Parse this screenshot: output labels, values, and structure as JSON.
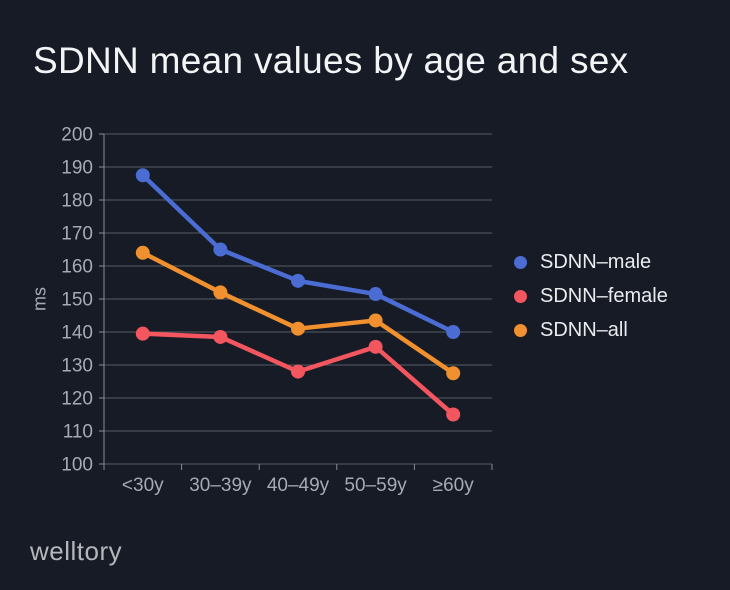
{
  "chart_data": {
    "type": "line",
    "title": "SDNN mean values by age and sex",
    "ylabel": "ms",
    "xlabel": "",
    "categories": [
      "<30y",
      "30–39y",
      "40–49y",
      "50–59y",
      "≥60y"
    ],
    "ylim": [
      100,
      200
    ],
    "ytick_step": 10,
    "grid": true,
    "legend_position": "right",
    "series": [
      {
        "name": "SDNN–male",
        "color": "#4a6cd3",
        "values": [
          187.5,
          165,
          155.5,
          151.5,
          140
        ]
      },
      {
        "name": "SDNN–female",
        "color": "#f4565f",
        "values": [
          139.5,
          138.5,
          128,
          135.5,
          115
        ]
      },
      {
        "name": "SDNN–all",
        "color": "#f0902f",
        "values": [
          164,
          152,
          141,
          143.5,
          127.5
        ]
      }
    ]
  },
  "branding": {
    "logo_text": "welltory"
  },
  "theme": {
    "background": "#161b25",
    "title_color": "#f3f4f5",
    "tick_color": "#a6aab2",
    "legend_text_color": "#e9ebee",
    "grid_color": "#575c66",
    "axis_color": "#878c95",
    "logo_color": "#b4b6ba"
  }
}
